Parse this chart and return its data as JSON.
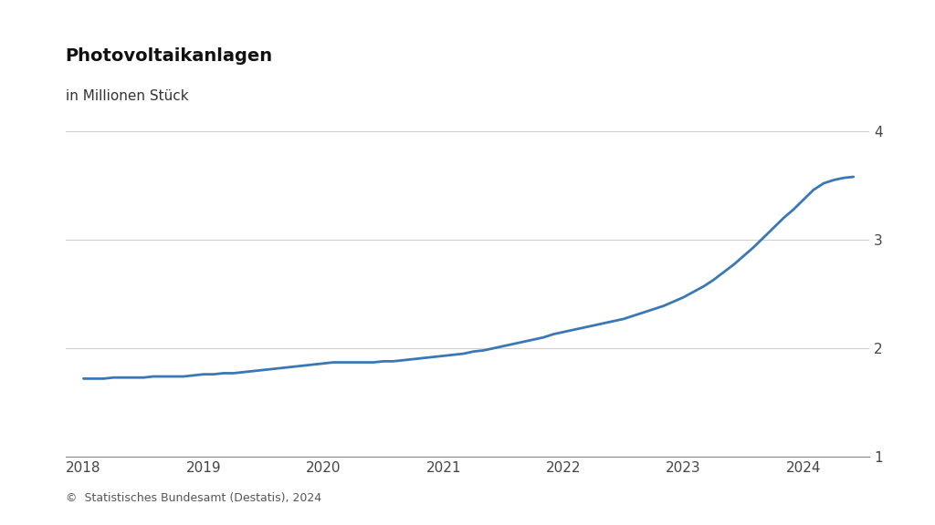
{
  "title": "Photovoltaikanlagen",
  "subtitle": "in Millionen Stück",
  "footer": "©  Statistisches Bundesamt (Destatis), 2024",
  "line_color": "#3a78b5",
  "line_width": 2.0,
  "background_color": "#ffffff",
  "ylim": [
    1,
    4
  ],
  "yticks": [
    1,
    2,
    3,
    4
  ],
  "x": [
    2018.0,
    2018.083,
    2018.167,
    2018.25,
    2018.333,
    2018.417,
    2018.5,
    2018.583,
    2018.667,
    2018.75,
    2018.833,
    2018.917,
    2019.0,
    2019.083,
    2019.167,
    2019.25,
    2019.333,
    2019.417,
    2019.5,
    2019.583,
    2019.667,
    2019.75,
    2019.833,
    2019.917,
    2020.0,
    2020.083,
    2020.167,
    2020.25,
    2020.333,
    2020.417,
    2020.5,
    2020.583,
    2020.667,
    2020.75,
    2020.833,
    2020.917,
    2021.0,
    2021.083,
    2021.167,
    2021.25,
    2021.333,
    2021.417,
    2021.5,
    2021.583,
    2021.667,
    2021.75,
    2021.833,
    2021.917,
    2022.0,
    2022.083,
    2022.167,
    2022.25,
    2022.333,
    2022.417,
    2022.5,
    2022.583,
    2022.667,
    2022.75,
    2022.833,
    2022.917,
    2023.0,
    2023.083,
    2023.167,
    2023.25,
    2023.333,
    2023.417,
    2023.5,
    2023.583,
    2023.667,
    2023.75,
    2023.833,
    2023.917,
    2024.0,
    2024.083,
    2024.167,
    2024.25,
    2024.333,
    2024.417
  ],
  "y": [
    1.72,
    1.72,
    1.72,
    1.73,
    1.73,
    1.73,
    1.73,
    1.74,
    1.74,
    1.74,
    1.74,
    1.75,
    1.76,
    1.76,
    1.77,
    1.77,
    1.78,
    1.79,
    1.8,
    1.81,
    1.82,
    1.83,
    1.84,
    1.85,
    1.86,
    1.87,
    1.87,
    1.87,
    1.87,
    1.87,
    1.88,
    1.88,
    1.89,
    1.9,
    1.91,
    1.92,
    1.93,
    1.94,
    1.95,
    1.97,
    1.98,
    2.0,
    2.02,
    2.04,
    2.06,
    2.08,
    2.1,
    2.13,
    2.15,
    2.17,
    2.19,
    2.21,
    2.23,
    2.25,
    2.27,
    2.3,
    2.33,
    2.36,
    2.39,
    2.43,
    2.47,
    2.52,
    2.57,
    2.63,
    2.7,
    2.77,
    2.85,
    2.93,
    3.02,
    3.11,
    3.2,
    3.28,
    3.37,
    3.46,
    3.52,
    3.55,
    3.57,
    3.58
  ],
  "xlim": [
    2017.85,
    2024.55
  ],
  "xticks": [
    2018,
    2019,
    2020,
    2021,
    2022,
    2023,
    2024
  ],
  "grid_color": "#d0d0d0",
  "title_fontsize": 14,
  "subtitle_fontsize": 11,
  "tick_fontsize": 11,
  "footer_fontsize": 9
}
